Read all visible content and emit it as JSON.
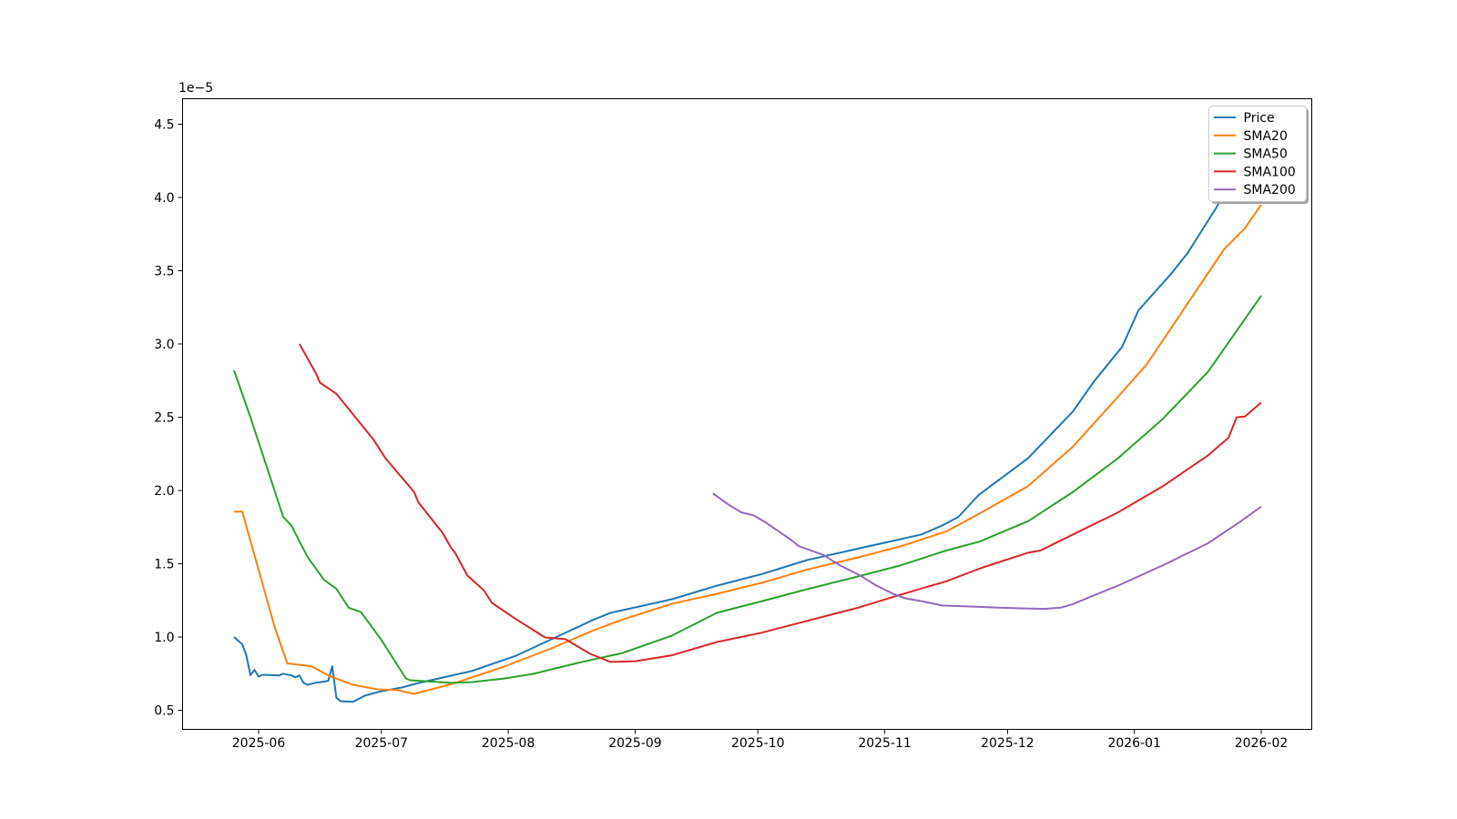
{
  "figure": {
    "background": "#ffffff"
  },
  "axes": {
    "offset_text": "1e−5",
    "x_tick_labels": [
      "2025-06",
      "2025-07",
      "2025-08",
      "2025-09",
      "2025-10",
      "2025-11",
      "2025-12",
      "2026-01",
      "2026-02"
    ],
    "y_tick_labels": [
      "0.5",
      "1.0",
      "1.5",
      "2.0",
      "2.5",
      "3.0",
      "3.5",
      "4.0",
      "4.5"
    ]
  },
  "legend": {
    "entries": [
      {
        "label": "Price",
        "color": "#1f77b4"
      },
      {
        "label": "SMA20",
        "color": "#ff7f0e"
      },
      {
        "label": "SMA50",
        "color": "#2ca02c"
      },
      {
        "label": "SMA100",
        "color": "#d62728"
      },
      {
        "label": "SMA200",
        "color": "#9467bd"
      }
    ]
  },
  "chart_data": {
    "type": "line",
    "title": "",
    "xlabel": "",
    "ylabel": "",
    "value_unit": "1e-5",
    "grid": false,
    "legend_position": "upper right",
    "x_ticks": [
      "2025-06",
      "2025-07",
      "2025-08",
      "2025-09",
      "2025-10",
      "2025-11",
      "2025-12",
      "2026-01",
      "2026-02"
    ],
    "y_ticks": [
      0.5,
      1.0,
      1.5,
      2.0,
      2.5,
      3.0,
      3.5,
      4.0,
      4.5
    ],
    "xlim": [
      "2025-05-14",
      "2026-02-13"
    ],
    "ylim": [
      0.37,
      4.67
    ],
    "series": [
      {
        "name": "Price",
        "color": "#1f77b4",
        "points": [
          [
            "2025-05-26",
            1.0
          ],
          [
            "2025-05-28",
            0.95
          ],
          [
            "2025-05-29",
            0.875
          ],
          [
            "2025-05-30",
            0.74
          ],
          [
            "2025-05-31",
            0.775
          ],
          [
            "2025-06-01",
            0.73
          ],
          [
            "2025-06-02",
            0.742
          ],
          [
            "2025-06-06",
            0.737
          ],
          [
            "2025-06-07",
            0.75
          ],
          [
            "2025-06-09",
            0.737
          ],
          [
            "2025-06-10",
            0.725
          ],
          [
            "2025-06-11",
            0.737
          ],
          [
            "2025-06-12",
            0.686
          ],
          [
            "2025-06-13",
            0.674
          ],
          [
            "2025-06-15",
            0.688
          ],
          [
            "2025-06-18",
            0.7
          ],
          [
            "2025-06-19",
            0.8
          ],
          [
            "2025-06-20",
            0.585
          ],
          [
            "2025-06-21",
            0.562
          ],
          [
            "2025-06-24",
            0.557
          ],
          [
            "2025-06-27",
            0.6
          ],
          [
            "2025-07-01",
            0.63
          ],
          [
            "2025-07-06",
            0.655
          ],
          [
            "2025-07-10",
            0.686
          ],
          [
            "2025-07-23",
            0.767
          ],
          [
            "2025-08-03",
            0.873
          ],
          [
            "2025-08-14",
            1.016
          ],
          [
            "2025-08-22",
            1.12
          ],
          [
            "2025-08-26",
            1.165
          ],
          [
            "2025-08-29",
            1.183
          ],
          [
            "2025-09-10",
            1.258
          ],
          [
            "2025-09-21",
            1.35
          ],
          [
            "2025-10-02",
            1.43
          ],
          [
            "2025-10-13",
            1.525
          ],
          [
            "2025-10-25",
            1.6
          ],
          [
            "2025-11-02",
            1.65
          ],
          [
            "2025-11-10",
            1.7
          ],
          [
            "2025-11-15",
            1.76
          ],
          [
            "2025-11-19",
            1.82
          ],
          [
            "2025-11-24",
            1.97
          ],
          [
            "2025-12-06",
            2.22
          ],
          [
            "2025-12-17",
            2.54
          ],
          [
            "2025-12-22",
            2.74
          ],
          [
            "2025-12-29",
            2.98
          ],
          [
            "2026-01-02",
            3.23
          ],
          [
            "2026-01-10",
            3.48
          ],
          [
            "2026-01-14",
            3.62
          ],
          [
            "2026-01-21",
            3.93
          ],
          [
            "2026-02-01",
            4.48
          ]
        ]
      },
      {
        "name": "SMA20",
        "color": "#ff7f0e",
        "points": [
          [
            "2025-05-26",
            1.855
          ],
          [
            "2025-05-28",
            1.855
          ],
          [
            "2025-06-05",
            1.06
          ],
          [
            "2025-06-08",
            0.82
          ],
          [
            "2025-06-14",
            0.8
          ],
          [
            "2025-06-18",
            0.737
          ],
          [
            "2025-06-24",
            0.674
          ],
          [
            "2025-06-30",
            0.643
          ],
          [
            "2025-07-05",
            0.637
          ],
          [
            "2025-07-07",
            0.624
          ],
          [
            "2025-07-09",
            0.612
          ],
          [
            "2025-07-19",
            0.686
          ],
          [
            "2025-07-31",
            0.798
          ],
          [
            "2025-08-11",
            0.916
          ],
          [
            "2025-08-22",
            1.047
          ],
          [
            "2025-08-29",
            1.12
          ],
          [
            "2025-09-10",
            1.227
          ],
          [
            "2025-09-21",
            1.295
          ],
          [
            "2025-10-02",
            1.37
          ],
          [
            "2025-10-13",
            1.46
          ],
          [
            "2025-10-25",
            1.54
          ],
          [
            "2025-11-05",
            1.62
          ],
          [
            "2025-11-16",
            1.72
          ],
          [
            "2025-11-24",
            1.84
          ],
          [
            "2025-12-06",
            2.03
          ],
          [
            "2025-12-17",
            2.3
          ],
          [
            "2025-12-28",
            2.64
          ],
          [
            "2026-01-04",
            2.86
          ],
          [
            "2026-01-10",
            3.11
          ],
          [
            "2026-01-17",
            3.4
          ],
          [
            "2026-01-23",
            3.65
          ],
          [
            "2026-01-28",
            3.79
          ],
          [
            "2026-02-01",
            3.95
          ]
        ]
      },
      {
        "name": "SMA50",
        "color": "#2ca02c",
        "points": [
          [
            "2025-05-26",
            2.82
          ],
          [
            "2025-05-30",
            2.5
          ],
          [
            "2025-06-07",
            1.82
          ],
          [
            "2025-06-09",
            1.76
          ],
          [
            "2025-06-13",
            1.545
          ],
          [
            "2025-06-17",
            1.39
          ],
          [
            "2025-06-20",
            1.33
          ],
          [
            "2025-06-23",
            1.2
          ],
          [
            "2025-06-26",
            1.17
          ],
          [
            "2025-07-01",
            0.98
          ],
          [
            "2025-07-07",
            0.717
          ],
          [
            "2025-07-08",
            0.705
          ],
          [
            "2025-07-18",
            0.687
          ],
          [
            "2025-07-23",
            0.692
          ],
          [
            "2025-07-31",
            0.717
          ],
          [
            "2025-08-07",
            0.748
          ],
          [
            "2025-08-18",
            0.823
          ],
          [
            "2025-08-29",
            0.891
          ],
          [
            "2025-09-10",
            1.01
          ],
          [
            "2025-09-21",
            1.165
          ],
          [
            "2025-10-02",
            1.245
          ],
          [
            "2025-10-13",
            1.326
          ],
          [
            "2025-10-25",
            1.41
          ],
          [
            "2025-11-05",
            1.49
          ],
          [
            "2025-11-16",
            1.59
          ],
          [
            "2025-11-24",
            1.65
          ],
          [
            "2025-12-06",
            1.79
          ],
          [
            "2025-12-17",
            1.99
          ],
          [
            "2025-12-28",
            2.22
          ],
          [
            "2026-01-08",
            2.49
          ],
          [
            "2026-01-19",
            2.81
          ],
          [
            "2026-02-01",
            3.33
          ]
        ]
      },
      {
        "name": "SMA100",
        "color": "#d62728",
        "points": [
          [
            "2025-06-11",
            3.0
          ],
          [
            "2025-06-15",
            2.8
          ],
          [
            "2025-06-16",
            2.736
          ],
          [
            "2025-06-20",
            2.66
          ],
          [
            "2025-06-29",
            2.35
          ],
          [
            "2025-07-02",
            2.22
          ],
          [
            "2025-07-09",
            1.99
          ],
          [
            "2025-07-10",
            1.92
          ],
          [
            "2025-07-16",
            1.71
          ],
          [
            "2025-07-18",
            1.61
          ],
          [
            "2025-07-19",
            1.575
          ],
          [
            "2025-07-22",
            1.42
          ],
          [
            "2025-07-26",
            1.32
          ],
          [
            "2025-07-28",
            1.233
          ],
          [
            "2025-08-03",
            1.12
          ],
          [
            "2025-08-10",
            0.997
          ],
          [
            "2025-08-15",
            0.985
          ],
          [
            "2025-08-21",
            0.885
          ],
          [
            "2025-08-26",
            0.83
          ],
          [
            "2025-09-01",
            0.835
          ],
          [
            "2025-09-10",
            0.875
          ],
          [
            "2025-09-21",
            0.966
          ],
          [
            "2025-10-02",
            1.03
          ],
          [
            "2025-10-13",
            1.11
          ],
          [
            "2025-10-25",
            1.196
          ],
          [
            "2025-11-05",
            1.29
          ],
          [
            "2025-11-16",
            1.38
          ],
          [
            "2025-11-25",
            1.475
          ],
          [
            "2025-12-06",
            1.575
          ],
          [
            "2025-12-09",
            1.59
          ],
          [
            "2025-12-17",
            1.7
          ],
          [
            "2025-12-28",
            1.85
          ],
          [
            "2026-01-08",
            2.03
          ],
          [
            "2026-01-19",
            2.24
          ],
          [
            "2026-01-24",
            2.36
          ],
          [
            "2026-01-26",
            2.5
          ],
          [
            "2026-01-28",
            2.505
          ],
          [
            "2026-02-01",
            2.6
          ]
        ]
      },
      {
        "name": "SMA200",
        "color": "#9467bd",
        "points": [
          [
            "2025-09-20",
            1.98
          ],
          [
            "2025-09-24",
            1.9
          ],
          [
            "2025-09-27",
            1.85
          ],
          [
            "2025-09-30",
            1.83
          ],
          [
            "2025-10-03",
            1.78
          ],
          [
            "2025-10-09",
            1.665
          ],
          [
            "2025-10-11",
            1.62
          ],
          [
            "2025-10-17",
            1.56
          ],
          [
            "2025-10-21",
            1.49
          ],
          [
            "2025-10-26",
            1.42
          ],
          [
            "2025-10-30",
            1.35
          ],
          [
            "2025-11-03",
            1.295
          ],
          [
            "2025-11-06",
            1.264
          ],
          [
            "2025-11-10",
            1.245
          ],
          [
            "2025-11-15",
            1.215
          ],
          [
            "2025-11-22",
            1.208
          ],
          [
            "2025-11-29",
            1.2
          ],
          [
            "2025-12-05",
            1.195
          ],
          [
            "2025-12-10",
            1.192
          ],
          [
            "2025-12-14",
            1.2
          ],
          [
            "2025-12-17",
            1.225
          ],
          [
            "2025-12-22",
            1.283
          ],
          [
            "2025-12-28",
            1.35
          ],
          [
            "2026-01-08",
            1.49
          ],
          [
            "2026-01-19",
            1.64
          ],
          [
            "2026-01-27",
            1.79
          ],
          [
            "2026-02-01",
            1.89
          ]
        ]
      }
    ]
  }
}
